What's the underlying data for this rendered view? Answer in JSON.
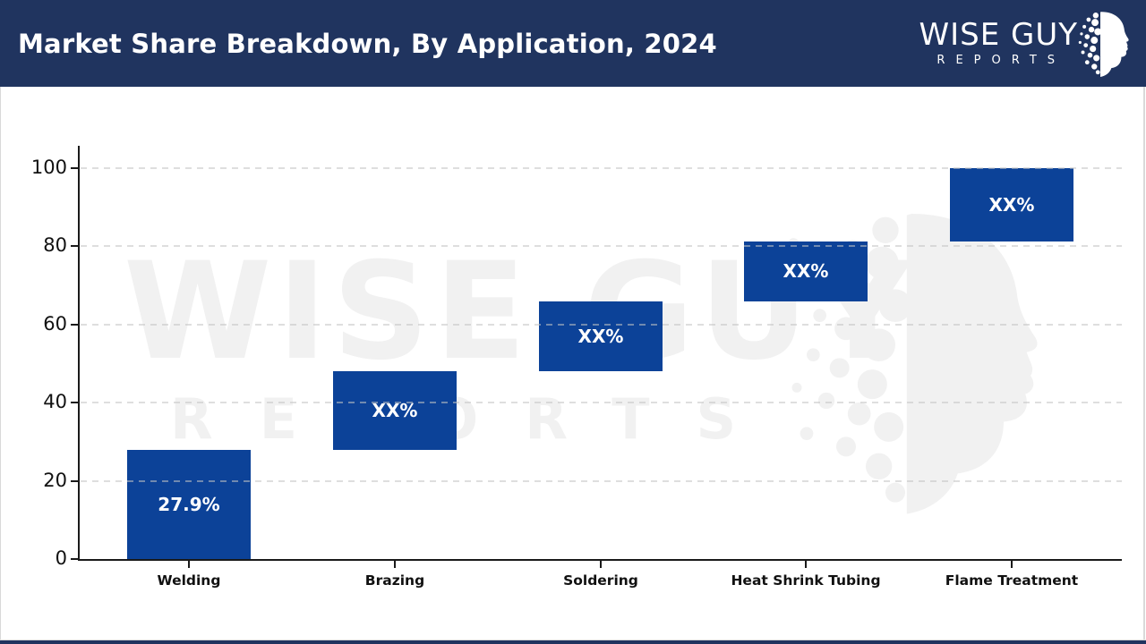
{
  "header": {
    "title": "Market Share Breakdown, By Application, 2024",
    "logo": {
      "line1": "WISE GUY",
      "line2": "REPORTS"
    }
  },
  "watermark": {
    "line1": "WISE GUY",
    "line2": "REPORTS"
  },
  "chart_data": {
    "type": "bar",
    "subtype": "waterfall",
    "title": "Market Share Breakdown, By Application, 2024",
    "categories": [
      "Welding",
      "Brazing",
      "Soldering",
      "Heat Shrink Tubing",
      "Flame Treatment"
    ],
    "series": [
      {
        "name": "Market share segment",
        "segments": [
          {
            "category": "Welding",
            "start": 0,
            "end": 27.9,
            "label": "27.9%"
          },
          {
            "category": "Brazing",
            "start": 27.9,
            "end": 48.1,
            "label": "XX%"
          },
          {
            "category": "Soldering",
            "start": 48.1,
            "end": 65.9,
            "label": "XX%"
          },
          {
            "category": "Heat Shrink Tubing",
            "start": 65.9,
            "end": 81.2,
            "label": "XX%"
          },
          {
            "category": "Flame Treatment",
            "start": 81.2,
            "end": 100,
            "label": "XX%"
          }
        ]
      }
    ],
    "xlabel": "",
    "ylabel": "",
    "yticks": [
      0,
      20,
      40,
      60,
      80,
      100
    ],
    "ylim": [
      0,
      105.6
    ],
    "grid": "dashed horizontal, drawn over bars",
    "legend": "none",
    "bar_color": "#0c4298"
  },
  "colors": {
    "header_bg": "#20345f",
    "bar": "#0c4298",
    "grid": "#c4c4c4",
    "axis": "#1a1a1a",
    "watermark": "#f1f1f1",
    "bar_label_text": "#ffffff",
    "title_text": "#ffffff"
  }
}
